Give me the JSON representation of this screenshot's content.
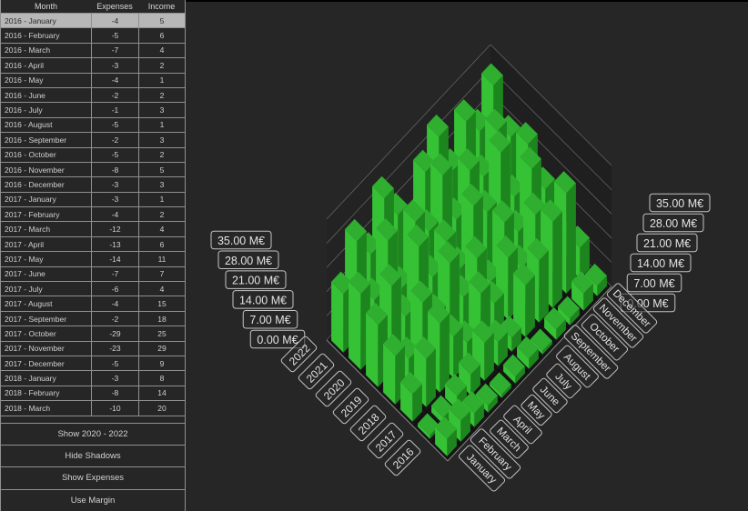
{
  "table": {
    "columns": [
      "Month",
      "Expenses",
      "Income"
    ],
    "selected_row": 0,
    "rows": [
      [
        "2016 - January",
        "-4",
        "5"
      ],
      [
        "2016 - February",
        "-5",
        "6"
      ],
      [
        "2016 - March",
        "-7",
        "4"
      ],
      [
        "2016 - April",
        "-3",
        "2"
      ],
      [
        "2016 - May",
        "-4",
        "1"
      ],
      [
        "2016 - June",
        "-2",
        "2"
      ],
      [
        "2016 - July",
        "-1",
        "3"
      ],
      [
        "2016 - August",
        "-5",
        "1"
      ],
      [
        "2016 - September",
        "-2",
        "3"
      ],
      [
        "2016 - October",
        "-5",
        "2"
      ],
      [
        "2016 - November",
        "-8",
        "5"
      ],
      [
        "2016 - December",
        "-3",
        "3"
      ],
      [
        "2017 - January",
        "-3",
        "1"
      ],
      [
        "2017 - February",
        "-4",
        "2"
      ],
      [
        "2017 - March",
        "-12",
        "4"
      ],
      [
        "2017 - April",
        "-13",
        "6"
      ],
      [
        "2017 - May",
        "-14",
        "11"
      ],
      [
        "2017 - June",
        "-7",
        "7"
      ],
      [
        "2017 - July",
        "-6",
        "4"
      ],
      [
        "2017 - August",
        "-4",
        "15"
      ],
      [
        "2017 - September",
        "-2",
        "18"
      ],
      [
        "2017 - October",
        "-29",
        "25"
      ],
      [
        "2017 - November",
        "-23",
        "29"
      ],
      [
        "2017 - December",
        "-5",
        "9"
      ],
      [
        "2018 - January",
        "-3",
        "8"
      ],
      [
        "2018 - February",
        "-8",
        "14"
      ],
      [
        "2018 - March",
        "-10",
        "20"
      ]
    ]
  },
  "buttons": {
    "show_years": "Show 2020 - 2022",
    "hide_shadows": "Hide Shadows",
    "show_expenses": "Show Expenses",
    "use_margin": "Use Margin"
  },
  "chart_data": {
    "type": "bar3d",
    "title": "",
    "series_name": "Income",
    "unit": "M€",
    "months": [
      "January",
      "February",
      "March",
      "April",
      "May",
      "June",
      "July",
      "August",
      "September",
      "October",
      "November",
      "December"
    ],
    "years": [
      "2016",
      "2017",
      "2018",
      "2019",
      "2020",
      "2021",
      "2022"
    ],
    "z_axis": {
      "min": 0,
      "max": 35,
      "step": 7,
      "tick_labels": [
        "0.00 M€",
        "7.00 M€",
        "14.00 M€",
        "21.00 M€",
        "28.00 M€",
        "35.00 M€"
      ]
    },
    "values_by_year": {
      "2016": [
        5,
        6,
        4,
        2,
        1,
        2,
        3,
        1,
        3,
        2,
        5,
        3
      ],
      "2017": [
        1,
        2,
        4,
        6,
        11,
        7,
        4,
        15,
        18,
        25,
        29,
        9
      ],
      "2018": [
        8,
        14,
        20,
        12,
        6,
        16,
        9,
        18,
        11,
        22,
        15,
        7
      ],
      "2019": [
        14,
        9,
        21,
        13,
        24,
        10,
        17,
        6,
        19,
        12,
        26,
        16
      ],
      "2020": [
        18,
        25,
        12,
        28,
        15,
        21,
        9,
        23,
        17,
        30,
        13,
        24
      ],
      "2021": [
        22,
        16,
        29,
        11,
        26,
        19,
        31,
        14,
        24,
        18,
        27,
        21
      ],
      "2022": [
        17,
        28,
        20,
        32,
        23,
        15,
        27,
        33,
        19,
        29,
        22,
        31
      ]
    },
    "colors": {
      "bar_top": "#2fae2f",
      "bar_left": "#35c335",
      "bar_right": "#1d851d",
      "wall_left": "#232323",
      "wall_right": "#1f1f1f",
      "floor": "#161616",
      "wall_grid_line": "#787878",
      "floor_grid_line": "#0d0d0d",
      "axis_edge_line": "#8a8a8a",
      "label_border": "#c4c4c4",
      "label_text": "#e2e2e2",
      "background": "#262626"
    }
  }
}
